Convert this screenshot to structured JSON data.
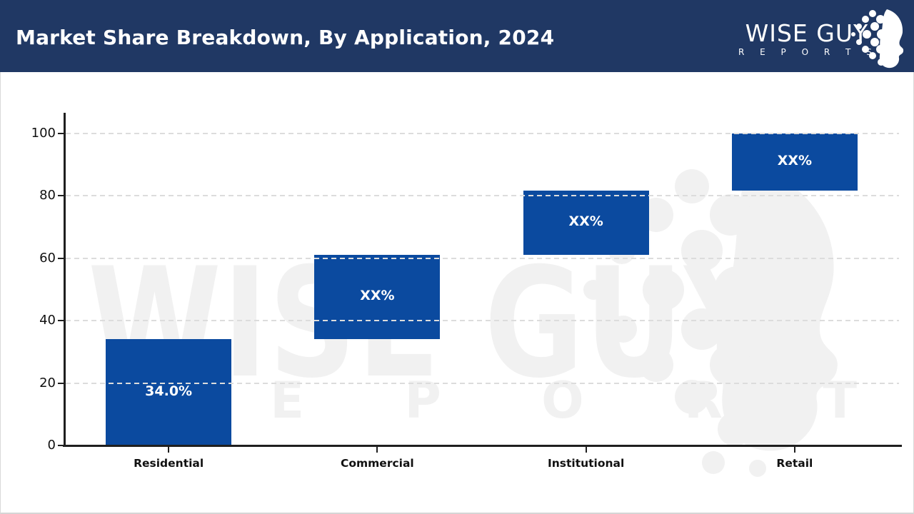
{
  "header": {
    "title": "Market Share Breakdown, By Application, 2024",
    "bg_color": "#203864"
  },
  "logo": {
    "name": "WISE GUY",
    "tagline": "R E P O R T S"
  },
  "watermark": {
    "line1": "WISE GUY",
    "line2": "R E P O R T S"
  },
  "chart_data": {
    "type": "bar",
    "subtype": "floating-waterfall",
    "title": "",
    "xlabel": "",
    "ylabel": "",
    "categories": [
      "Residential",
      "Commercial",
      "Institutional",
      "Retail"
    ],
    "segments": [
      {
        "category": "Residential",
        "start": 0,
        "end": 34,
        "label": "34.0%"
      },
      {
        "category": "Commercial",
        "start": 34,
        "end": 61,
        "label": "XX%"
      },
      {
        "category": "Institutional",
        "start": 61,
        "end": 81.7,
        "label": "XX%"
      },
      {
        "category": "Retail",
        "start": 81.7,
        "end": 100,
        "label": "XX%"
      }
    ],
    "yticks": [
      0,
      20,
      40,
      60,
      80,
      100
    ],
    "ylim": [
      0,
      106
    ],
    "grid": "horizontal-dashed",
    "legend_position": "none",
    "bar_color": "#0b4a9f",
    "bar_label_color": "#ffffff",
    "axis_color": "#1f1f1f",
    "grid_color": "#dcdcdc"
  }
}
